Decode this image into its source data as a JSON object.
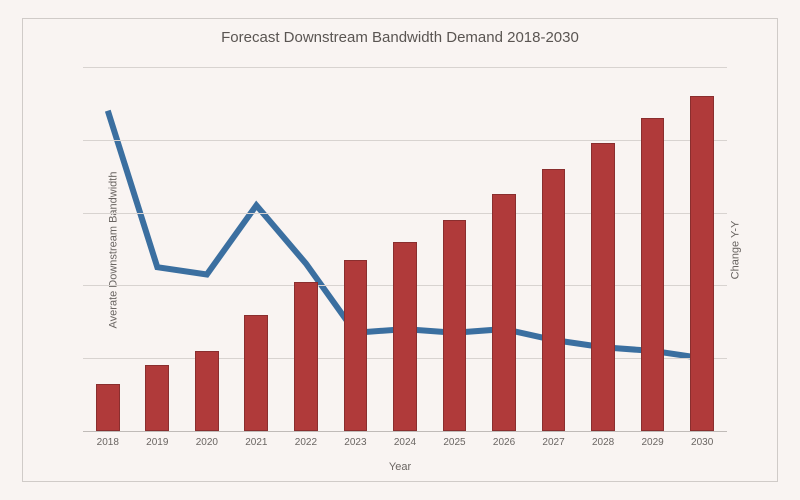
{
  "chart": {
    "type": "bar+line",
    "title": "Forecast Downstream Bandwidth Demand 2018-2030",
    "title_fontsize": 15,
    "title_color": "#5a5552",
    "background_color": "#f9f4f2",
    "frame_border_color": "#d0cbc8",
    "x": {
      "label": "Year",
      "label_fontsize": 11,
      "categories": [
        "2018",
        "2019",
        "2020",
        "2021",
        "2022",
        "2023",
        "2024",
        "2025",
        "2026",
        "2027",
        "2028",
        "2029",
        "2030"
      ]
    },
    "y_left": {
      "label": "Averate Downstream Bandwidth",
      "label_fontsize": 11,
      "min": 0,
      "max": 100,
      "gridlines": [
        0,
        20,
        40,
        60,
        80,
        100
      ],
      "grid_color": "#d8d3d0"
    },
    "y_right": {
      "label": "Change Y-Y",
      "label_fontsize": 11,
      "min": 0,
      "max": 100
    },
    "bars": {
      "values": [
        13,
        18,
        22,
        32,
        41,
        47,
        52,
        58,
        65,
        72,
        79,
        86,
        92
      ],
      "color": "#b03a3a",
      "border_color": "#8a2e2e",
      "bar_width_frac": 0.48
    },
    "line": {
      "values": [
        88,
        45,
        43,
        62,
        46,
        27,
        28,
        27,
        28,
        25,
        23,
        22,
        20
      ],
      "color": "#3b6fa0",
      "width": 2
    },
    "label_color": "#6a6562",
    "tick_fontsize": 10
  }
}
